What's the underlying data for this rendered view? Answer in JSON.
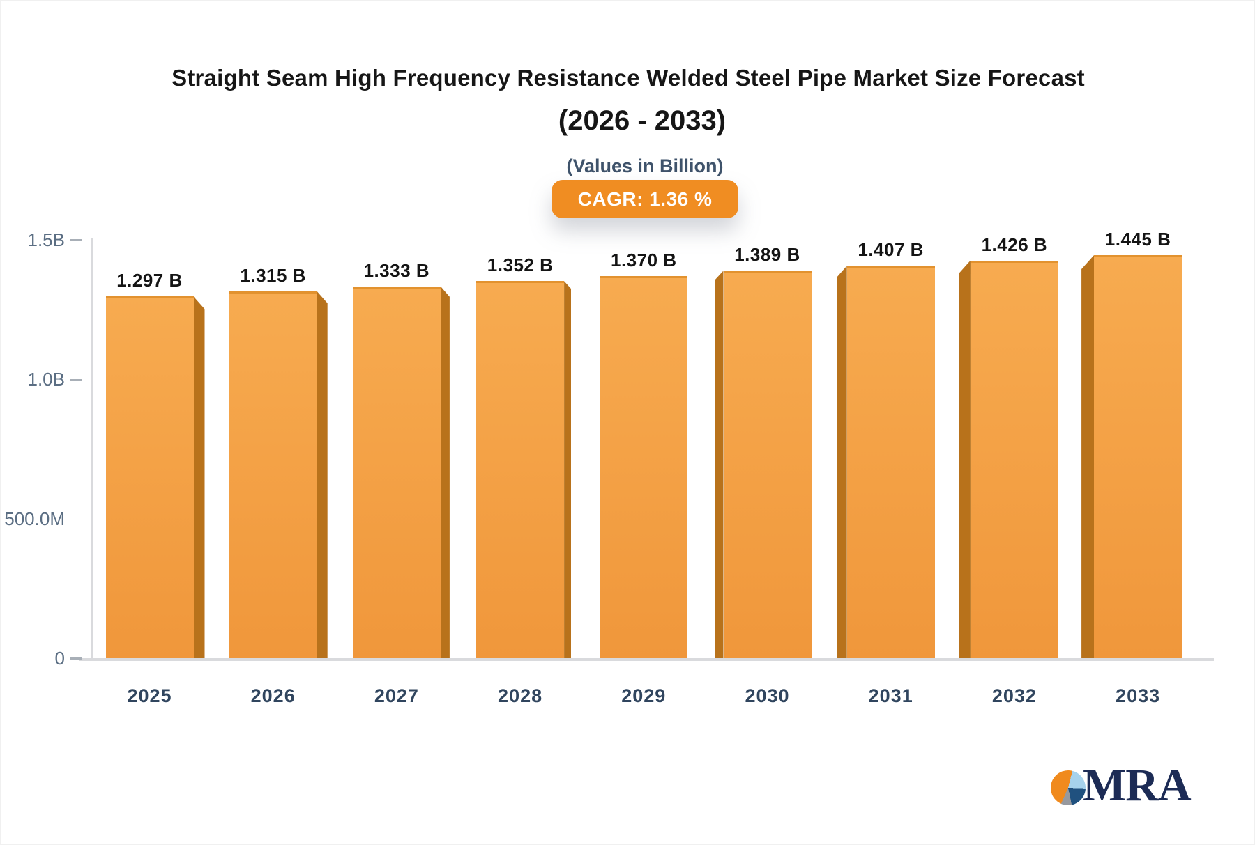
{
  "header": {
    "title_line1": "Straight Seam High Frequency Resistance Welded Steel Pipe Market Size Forecast",
    "title_line2": "(2026 - 2033)",
    "subtitle": "(Values in Billion)",
    "cagr_label": "CAGR: 1.36 %"
  },
  "chart_data": {
    "type": "bar",
    "title": "Straight Seam High Frequency Resistance Welded Steel Pipe Market Size Forecast (2026 - 2033)",
    "subtitle": "(Values in Billion)",
    "cagr_percent": 1.36,
    "categories": [
      "2025",
      "2026",
      "2027",
      "2028",
      "2029",
      "2030",
      "2031",
      "2032",
      "2033"
    ],
    "values": [
      1.297,
      1.315,
      1.333,
      1.352,
      1.37,
      1.389,
      1.407,
      1.426,
      1.445
    ],
    "value_labels": [
      "1.297 B",
      "1.315 B",
      "1.333 B",
      "1.352 B",
      "1.370 B",
      "1.389 B",
      "1.407 B",
      "1.426 B",
      "1.445 B"
    ],
    "xlabel": "",
    "ylabel": "",
    "ylim": [
      0,
      1.5
    ],
    "grid": false,
    "legend": false,
    "y_ticks": [
      {
        "label": "1.5B",
        "value": 1.5,
        "dash": true
      },
      {
        "label": "1.0B",
        "value": 1.0,
        "dash": true
      },
      {
        "label": "500.0M",
        "value": 0.5,
        "dash": false
      },
      {
        "label": "0",
        "value": 0.0,
        "dash": true
      }
    ],
    "colors": {
      "bar_face_top": "#f7ab50",
      "bar_face_bottom": "#f0973b",
      "bar_side": "#b8721b",
      "bar_top_stroke": "#e2922f",
      "axis_line": "#d9dadd",
      "tick_text": "#5b6e83",
      "year_text": "#30455e",
      "value_text": "#141414",
      "badge_bg": "#f08d22"
    }
  },
  "logo": {
    "text": "MRA",
    "pie_colors": {
      "orange": "#f08a1d",
      "light_blue": "#a6d2ec",
      "navy": "#20517f",
      "gray": "#97999e"
    },
    "text_color": "#1c2b55"
  }
}
